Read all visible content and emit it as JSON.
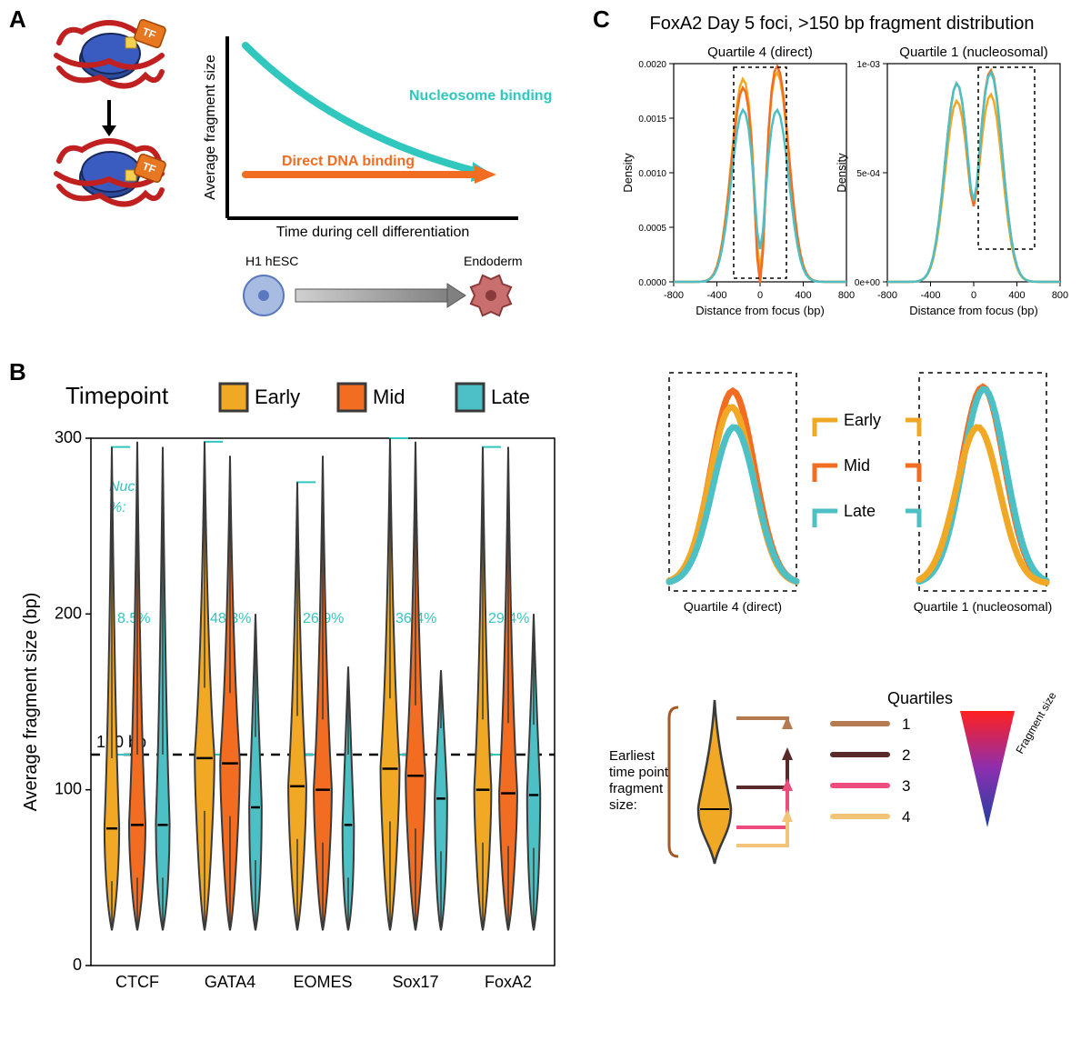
{
  "colors": {
    "early": "#f0a825",
    "mid": "#f26d21",
    "late": "#4cc0c4",
    "teal": "#2fc7be",
    "orange": "#f26d21",
    "dna_red": "#c02020",
    "nuc_blue": "#2d4b9c",
    "tf_orange": "#e87722",
    "tf_yellow": "#f7d050",
    "hesc": "#a7bce0",
    "endo": "#c96f6f",
    "q1": "#b57a50",
    "q2": "#5a2a2a",
    "q3": "#ed4d7e",
    "q4": "#f2c478",
    "grad_top": "#ff2020",
    "grad_mid": "#8b2fb0",
    "grad_bot": "#2040a0",
    "violin_stroke": "#3a3a3a"
  },
  "panelA": {
    "label": "A",
    "ylab": "Average fragment size",
    "xlab": "Time during cell differentiation",
    "nucleosome_binding": "Nucleosome binding",
    "direct_binding": "Direct DNA binding",
    "hesc_label": "H1 hESC",
    "endo_label": "Endoderm",
    "tf_label": "TF"
  },
  "panelB": {
    "label": "B",
    "legend_title": "Timepoint",
    "legend": [
      "Early",
      "Mid",
      "Late"
    ],
    "ylab": "Average fragment size (bp)",
    "yticks": [
      0,
      100,
      200,
      300
    ],
    "ylim": [
      0,
      300
    ],
    "nuc_pct_label": "Nuc. %:",
    "hline": 120,
    "hline_label": "120 bp",
    "groups": [
      {
        "name": "CTCF",
        "nuc_pct": "8.5%",
        "medians": [
          78,
          80,
          80
        ],
        "widths": [
          0.45,
          0.5,
          0.42
        ],
        "tails": [
          295,
          298,
          295
        ]
      },
      {
        "name": "GATA4",
        "nuc_pct": "48.3%",
        "medians": [
          118,
          115,
          90
        ],
        "widths": [
          0.6,
          0.6,
          0.38
        ],
        "tails": [
          298,
          290,
          200
        ]
      },
      {
        "name": "EOMES",
        "nuc_pct": "26.9%",
        "medians": [
          102,
          100,
          80
        ],
        "widths": [
          0.55,
          0.55,
          0.35
        ],
        "tails": [
          275,
          290,
          170
        ]
      },
      {
        "name": "Sox17",
        "nuc_pct": "36.4%",
        "medians": [
          112,
          108,
          95
        ],
        "widths": [
          0.58,
          0.6,
          0.38
        ],
        "tails": [
          300,
          298,
          168
        ]
      },
      {
        "name": "FoxA2",
        "nuc_pct": "29.4%",
        "medians": [
          100,
          98,
          97
        ],
        "widths": [
          0.52,
          0.55,
          0.4
        ],
        "tails": [
          295,
          295,
          200
        ]
      }
    ]
  },
  "panelC": {
    "label": "C",
    "title": "FoxA2 Day 5 foci, >150 bp fragment distribution",
    "sub_left": "Quartile 4 (direct)",
    "sub_right": "Quartile 1 (nucleosomal)",
    "ylab": "Density",
    "xlab": "Distance from focus (bp)",
    "xticks": [
      -800,
      -400,
      0,
      400,
      800
    ],
    "left_yticks": [
      "0.0000",
      "0.0005",
      "0.0010",
      "0.0015",
      "0.0020"
    ],
    "right_yticks": [
      "0e+00",
      "5e-04",
      "1e-03"
    ],
    "zoom_labels": [
      "Early",
      "Mid",
      "Late"
    ],
    "quartiles_title": "Quartiles",
    "quartiles": [
      "1",
      "2",
      "3",
      "4"
    ],
    "earliest_label": "Earliest time point fragment size:",
    "frag_size_label": "Fragment size"
  }
}
